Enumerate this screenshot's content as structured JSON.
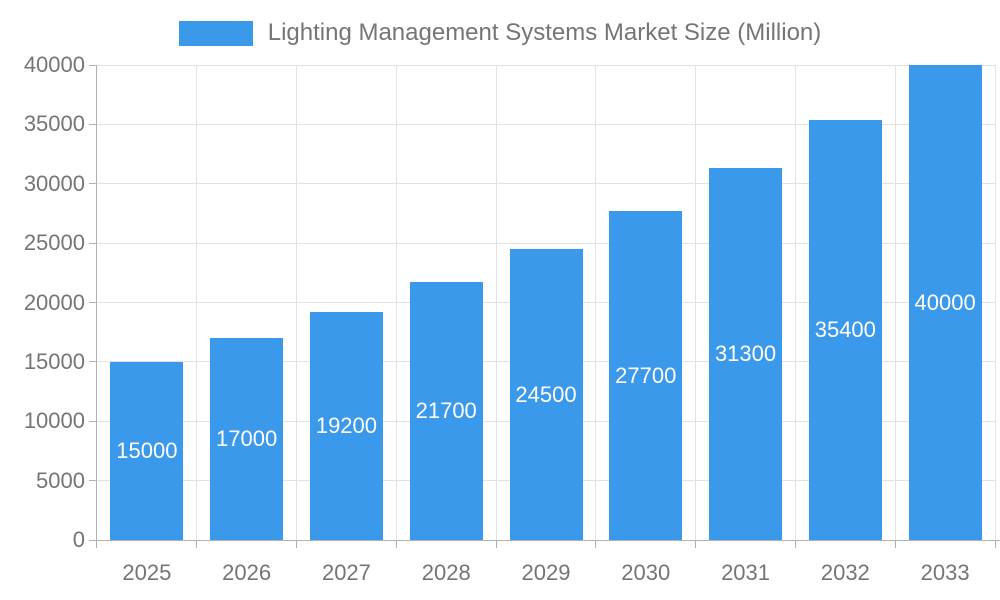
{
  "legend": {
    "label": "Lighting Management Systems Market Size (Million)"
  },
  "colors": {
    "bar": "#3b99ec",
    "grid": "#e2e2e2",
    "axis": "#b0b0b0",
    "text": "#757575",
    "value_label": "#ffffff",
    "background": "#ffffff"
  },
  "chart_data": {
    "type": "bar",
    "title": "Lighting Management Systems Market Size (Million)",
    "categories": [
      "2025",
      "2026",
      "2027",
      "2028",
      "2029",
      "2030",
      "2031",
      "2032",
      "2033"
    ],
    "values": [
      15000,
      17000,
      19200,
      21700,
      24500,
      27700,
      31300,
      35400,
      40000
    ],
    "xlabel": "",
    "ylabel": "",
    "ylim": [
      0,
      40000
    ],
    "ytick_step": 5000,
    "ytick_labels": [
      "0",
      "5000",
      "10000",
      "15000",
      "20000",
      "25000",
      "30000",
      "35000",
      "40000"
    ],
    "grid": true,
    "legend_position": "top",
    "value_labels": "inside-center"
  }
}
